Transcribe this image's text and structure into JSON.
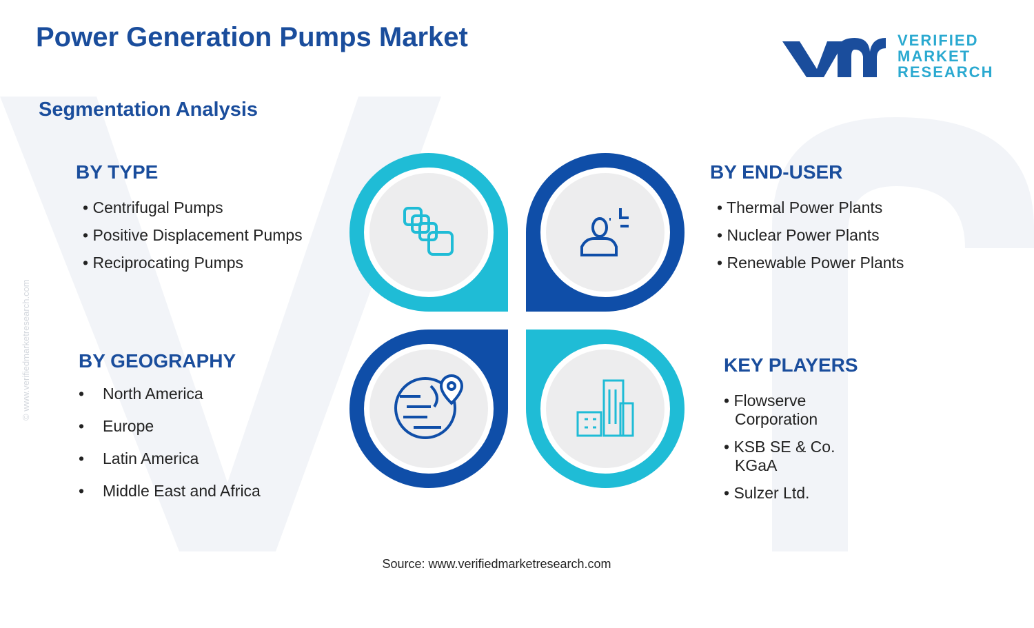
{
  "header": {
    "title": "Power Generation Pumps Market",
    "subtitle": "Segmentation Analysis"
  },
  "logo": {
    "lines": [
      "VERIFIED",
      "MARKET",
      "RESEARCH"
    ]
  },
  "watermark": "© www.verifiedmarketresearch.com",
  "segments": [
    {
      "heading": "BY TYPE",
      "items": [
        "Centrifugal Pumps",
        "Positive Displacement Pumps",
        "Reciprocating Pumps"
      ]
    },
    {
      "heading": "BY END-USER",
      "items": [
        "Thermal Power Plants",
        "Nuclear Power Plants",
        "Renewable Power Plants"
      ]
    },
    {
      "heading": "BY GEOGRAPHY",
      "items": [
        "North America",
        "Europe",
        "Latin America",
        "Middle East and Africa"
      ]
    },
    {
      "heading": "KEY PLAYERS",
      "items": [
        "Flowserve Corporation",
        "KSB SE & Co. KGaA",
        "Sulzer Ltd."
      ]
    }
  ],
  "source": "Source: www.verifiedmarketresearch.com"
}
